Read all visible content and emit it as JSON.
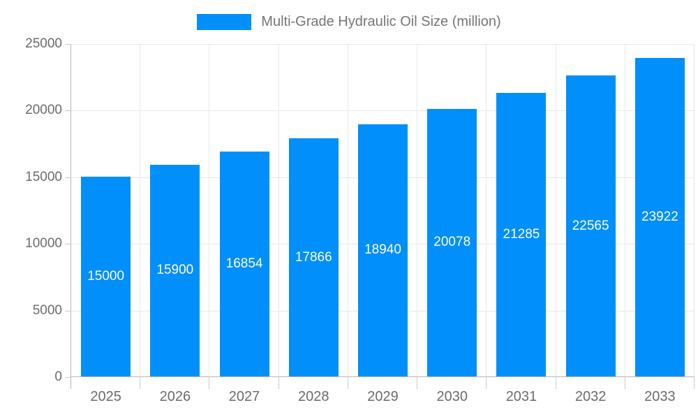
{
  "chart_data": {
    "type": "bar",
    "series_name": "Multi-Grade Hydraulic Oil Size (million)",
    "categories": [
      "2025",
      "2026",
      "2027",
      "2028",
      "2029",
      "2030",
      "2031",
      "2032",
      "2033"
    ],
    "values": [
      15000,
      15900,
      16854,
      17866,
      18940,
      20078,
      21285,
      22565,
      23922
    ],
    "title": "",
    "xlabel": "",
    "ylabel": "",
    "ylim": [
      0,
      25000
    ],
    "yticks": [
      0,
      5000,
      10000,
      15000,
      20000,
      25000
    ],
    "grid": true,
    "legend_position": "top",
    "data_labels": "inside-center",
    "colors": {
      "bar": "#008FFB",
      "data_label": "#FFFFFF",
      "axis_label": "#6B6B6B",
      "legend_label": "#757575",
      "gridline": "#E7E7E7",
      "axis_line": "#B6B6B6",
      "tick": "#C9C9C9",
      "background": "#FFFFFF"
    }
  }
}
